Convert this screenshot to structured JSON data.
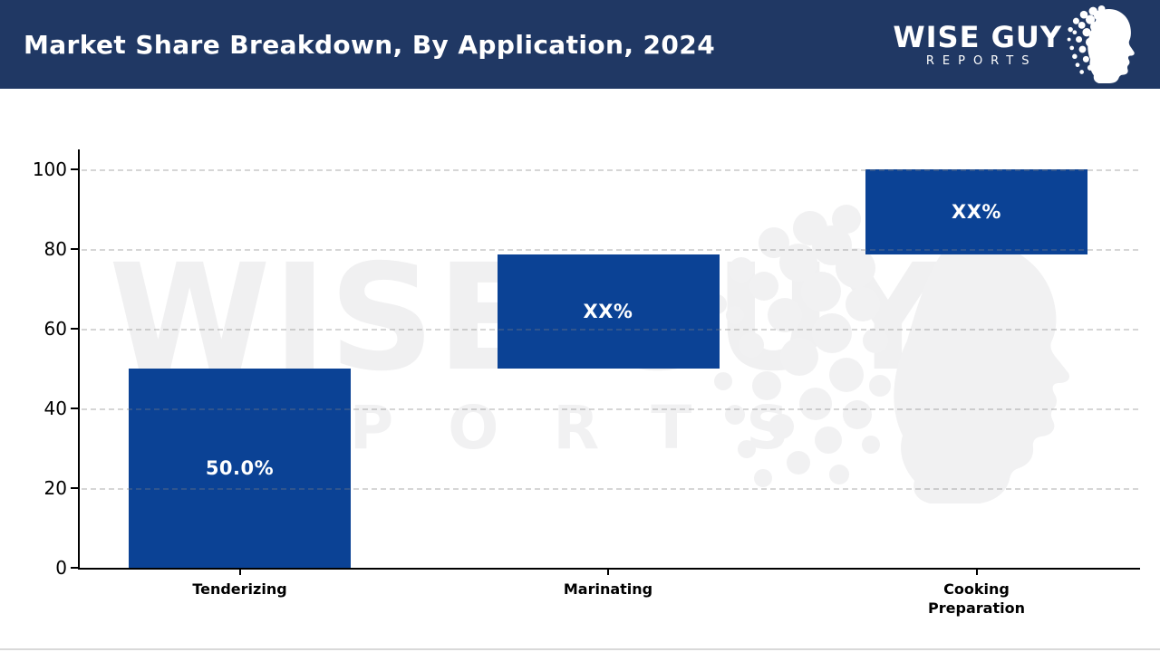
{
  "header": {
    "title": "Market Share Breakdown, By Application, 2024",
    "background_color": "#203864",
    "logo": {
      "brand": "WISE GUY",
      "sub": "REPORTS"
    }
  },
  "watermark": {
    "brand": "WISE GUY",
    "sub": "REPORTS"
  },
  "chart_data": {
    "type": "bar",
    "variant": "waterfall",
    "title": "Market Share Breakdown, By Application, 2024",
    "categories": [
      "Tenderizing",
      "Marinating",
      "Cooking Preparation"
    ],
    "tick_labels": [
      "Tenderizing",
      "Marinating",
      "Cooking\nPreparation"
    ],
    "segments": [
      {
        "category": "Tenderizing",
        "start": 0,
        "end": 50,
        "value": 50.0,
        "label": "50.0%"
      },
      {
        "category": "Marinating",
        "start": 50,
        "end": 78.6,
        "value": 28.6,
        "label": "XX%"
      },
      {
        "category": "Cooking Preparation",
        "start": 78.6,
        "end": 100,
        "value": 21.4,
        "label": "XX%"
      }
    ],
    "xlabel": "",
    "ylabel": "",
    "yticks": [
      0,
      20,
      40,
      60,
      80,
      100
    ],
    "ylim": [
      0,
      105
    ],
    "grid": {
      "axis": "y",
      "style": "dashed",
      "drawn_above_bars": true
    },
    "legend": "none",
    "colors": {
      "bar": "#0b4295",
      "bar_label": "#ffffff",
      "axis": "#000000",
      "grid": "#808080",
      "background": "#ffffff",
      "watermark": "#f0f0f1"
    }
  }
}
